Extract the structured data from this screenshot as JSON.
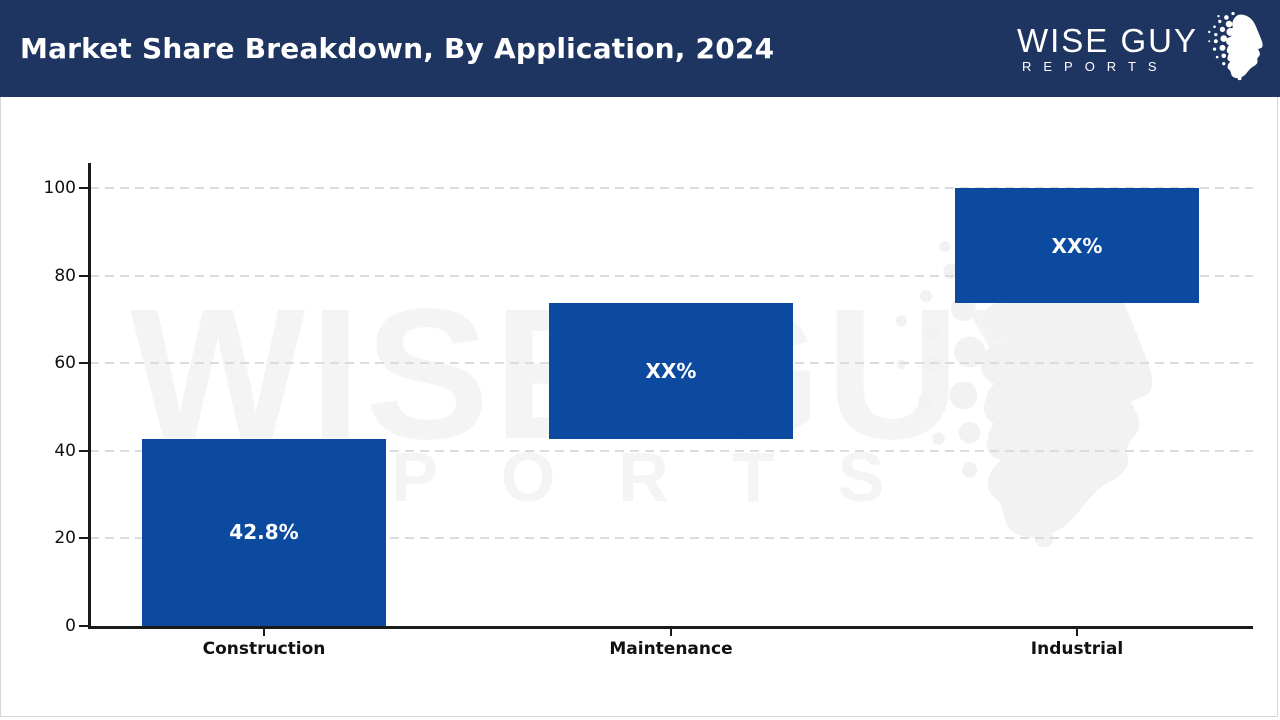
{
  "header": {
    "logo": {
      "name": "WISE GUY",
      "subtitle": "REPORTS"
    },
    "bg_color": "#1F3561"
  },
  "watermark": {
    "line1": "WISE GUY",
    "line2": "REPORTS"
  },
  "chart_data": {
    "type": "bar",
    "subtype": "waterfall",
    "title": "Market Share Breakdown, By Application, 2024",
    "categories": [
      "Construction",
      "Maintenance",
      "Industrial"
    ],
    "segments": [
      {
        "category": "Construction",
        "start": 0,
        "end": 42.8,
        "label": "42.8%"
      },
      {
        "category": "Maintenance",
        "start": 42.8,
        "end": 73.7,
        "label": "XX%"
      },
      {
        "category": "Industrial",
        "start": 73.7,
        "end": 100,
        "label": "XX%"
      }
    ],
    "ylim": [
      0,
      100
    ],
    "yticks": [
      0,
      20,
      40,
      60,
      80,
      100
    ],
    "xlabel": "",
    "ylabel": "",
    "grid": "dashed-horizontal",
    "legend": "none",
    "bar_color": "#0B4A9F",
    "bar_label_color": "#FFFFFF",
    "gridline_color": "#DCDCDC",
    "axis_color": "#1A1A1A",
    "watermark_color": "#F2F2F2"
  }
}
